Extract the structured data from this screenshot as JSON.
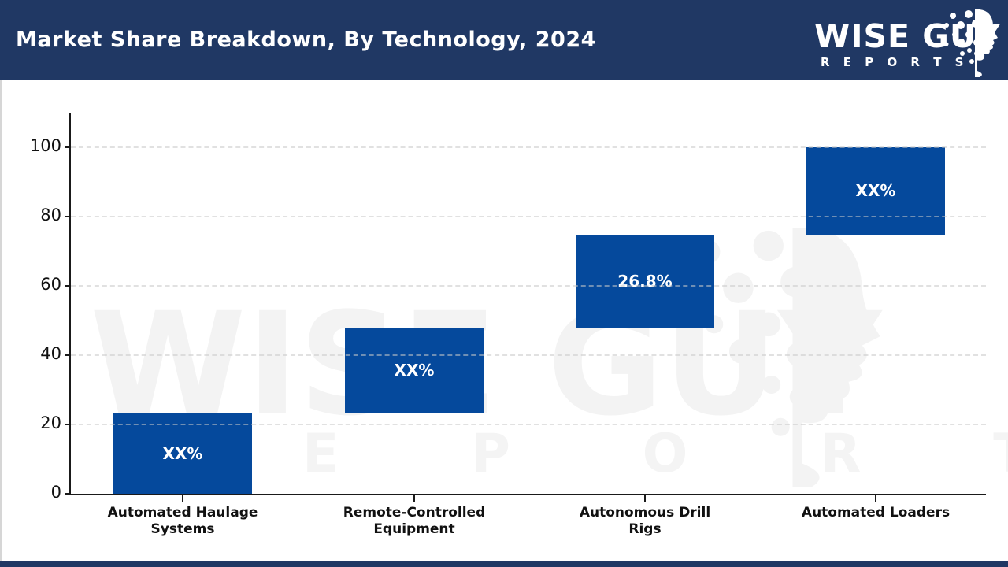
{
  "header": {
    "title": "Market Share Breakdown, By Technology, 2024",
    "logo": {
      "line1": "WISE GUY",
      "line2": "R E P O R T S"
    }
  },
  "watermark": {
    "line1": "WISE GUY",
    "line2": "R E P O R T S"
  },
  "colors": {
    "header_navy": "#203864",
    "bar_blue": "#05499c",
    "gridline_gray": "#d9d9d9",
    "watermark_gray": "#f3f3f3",
    "bar_label_white": "#ffffff"
  },
  "chart_data": {
    "type": "bar",
    "subtype": "waterfall-floating",
    "title": "Market Share Breakdown, By Technology, 2024",
    "categories": [
      "Automated Haulage Systems",
      "Remote-Controlled Equipment",
      "Autonomous Drill Rigs",
      "Automated Loaders"
    ],
    "categories_wrapped": [
      [
        "Automated Haulage",
        "Systems"
      ],
      [
        "Remote-Controlled",
        "Equipment"
      ],
      [
        "Autonomous Drill",
        "Rigs"
      ],
      [
        "Automated Loaders"
      ]
    ],
    "series": [
      {
        "name": "Market Share",
        "segments": [
          {
            "category": "Automated Haulage Systems",
            "start": 0,
            "end": 23.2,
            "label": "XX%"
          },
          {
            "category": "Remote-Controlled Equipment",
            "start": 23.2,
            "end": 48.0,
            "label": "XX%"
          },
          {
            "category": "Autonomous Drill Rigs",
            "start": 48.0,
            "end": 74.8,
            "label": "26.8%"
          },
          {
            "category": "Automated Loaders",
            "start": 74.8,
            "end": 100,
            "label": "XX%"
          }
        ]
      }
    ],
    "xlabel": "",
    "ylabel": "",
    "ylim": [
      0,
      100
    ],
    "yticks": [
      0,
      20,
      40,
      60,
      80,
      100
    ],
    "grid": "horizontal dashed, drawn over bars",
    "legend": "none"
  }
}
